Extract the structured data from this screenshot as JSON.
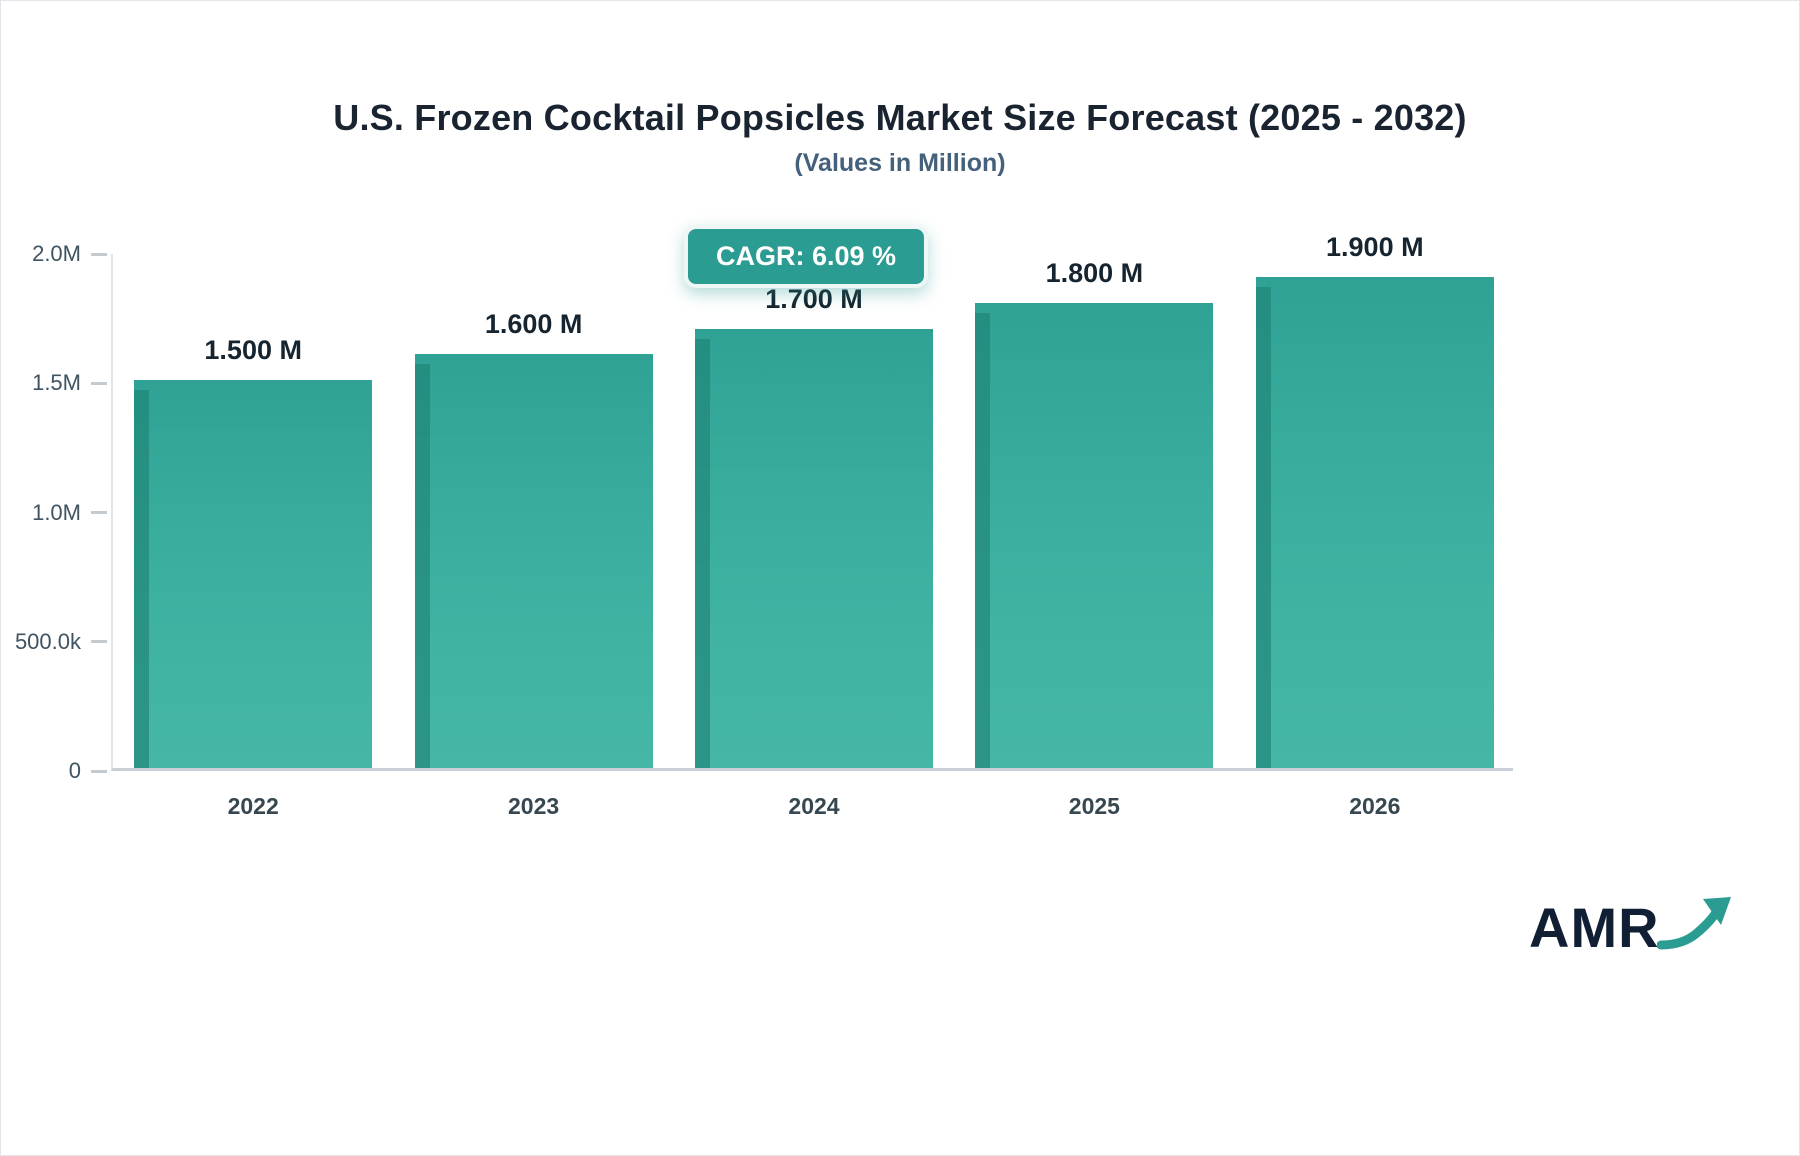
{
  "title": "U.S. Frozen Cocktail Popsicles Market Size Forecast (2025 - 2032)",
  "subtitle": "(Values in Million)",
  "badge": {
    "label": "CAGR: 6.09 %"
  },
  "logo": {
    "text": "AMR"
  },
  "colors": {
    "bar_top": "#2fa295",
    "bar_bottom": "#46b7a6",
    "bar_edge": "#1f8277",
    "badge_bg": "#2b9c92",
    "title_text": "#1a2430",
    "subtitle_text": "#44607a",
    "accent": "#2b9c92"
  },
  "chart_data": {
    "type": "bar",
    "title": "U.S. Frozen Cocktail Popsicles Market Size Forecast (2025 - 2032)",
    "subtitle": "(Values in Million)",
    "xlabel": "",
    "ylabel": "",
    "categories": [
      "2022",
      "2023",
      "2024",
      "2025",
      "2026"
    ],
    "values": [
      1.5,
      1.6,
      1.7,
      1.8,
      1.9
    ],
    "unit": "Million",
    "value_labels": [
      "1.500 M",
      "1.600 M",
      "1.700 M",
      "1.800 M",
      "1.900 M"
    ],
    "ylim": [
      0,
      2.0
    ],
    "yticks": [
      {
        "value": 0,
        "label": "0"
      },
      {
        "value": 0.5,
        "label": "500.0k"
      },
      {
        "value": 1.0,
        "label": "1.0M"
      },
      {
        "value": 1.5,
        "label": "1.5M"
      },
      {
        "value": 2.0,
        "label": "2.0M"
      }
    ],
    "grid": false,
    "legend": false,
    "annotations": [
      "CAGR: 6.09 %"
    ]
  }
}
